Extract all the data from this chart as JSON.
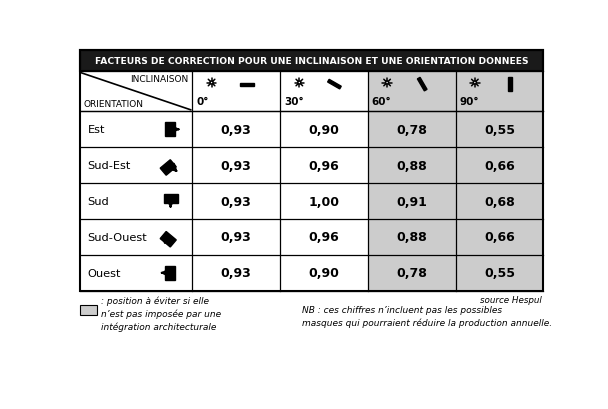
{
  "title": "FACTEURS DE CORRECTION POUR UNE INCLINAISON ET UNE ORIENTATION DONNEES",
  "header_bg": "#1a1a1a",
  "header_text_color": "#ffffff",
  "col_headers": [
    "0°",
    "30°",
    "60°",
    "90°"
  ],
  "row_labels": [
    "Est",
    "Sud-Est",
    "Sud",
    "Sud-Ouest",
    "Ouest"
  ],
  "values": [
    [
      "0,93",
      "0,90",
      "0,78",
      "0,55"
    ],
    [
      "0,93",
      "0,96",
      "0,88",
      "0,66"
    ],
    [
      "0,93",
      "1,00",
      "0,91",
      "0,68"
    ],
    [
      "0,93",
      "0,96",
      "0,88",
      "0,66"
    ],
    [
      "0,93",
      "0,90",
      "0,78",
      "0,55"
    ]
  ],
  "shaded_col_indices": [
    2,
    3
  ],
  "shaded_color": "#cccccc",
  "white_color": "#ffffff",
  "border_color": "#000000",
  "footer_note_left": ": position à éviter si elle\nn’est pas imposée par une\nintégration architecturale",
  "footer_note_right": "NB : ces chiffres n’incluent pas les possibles\nmasques qui pourraient réduire la production annuelle.",
  "source_text": "source Hespul",
  "panel_angles_deg": [
    0,
    30,
    60,
    90
  ]
}
